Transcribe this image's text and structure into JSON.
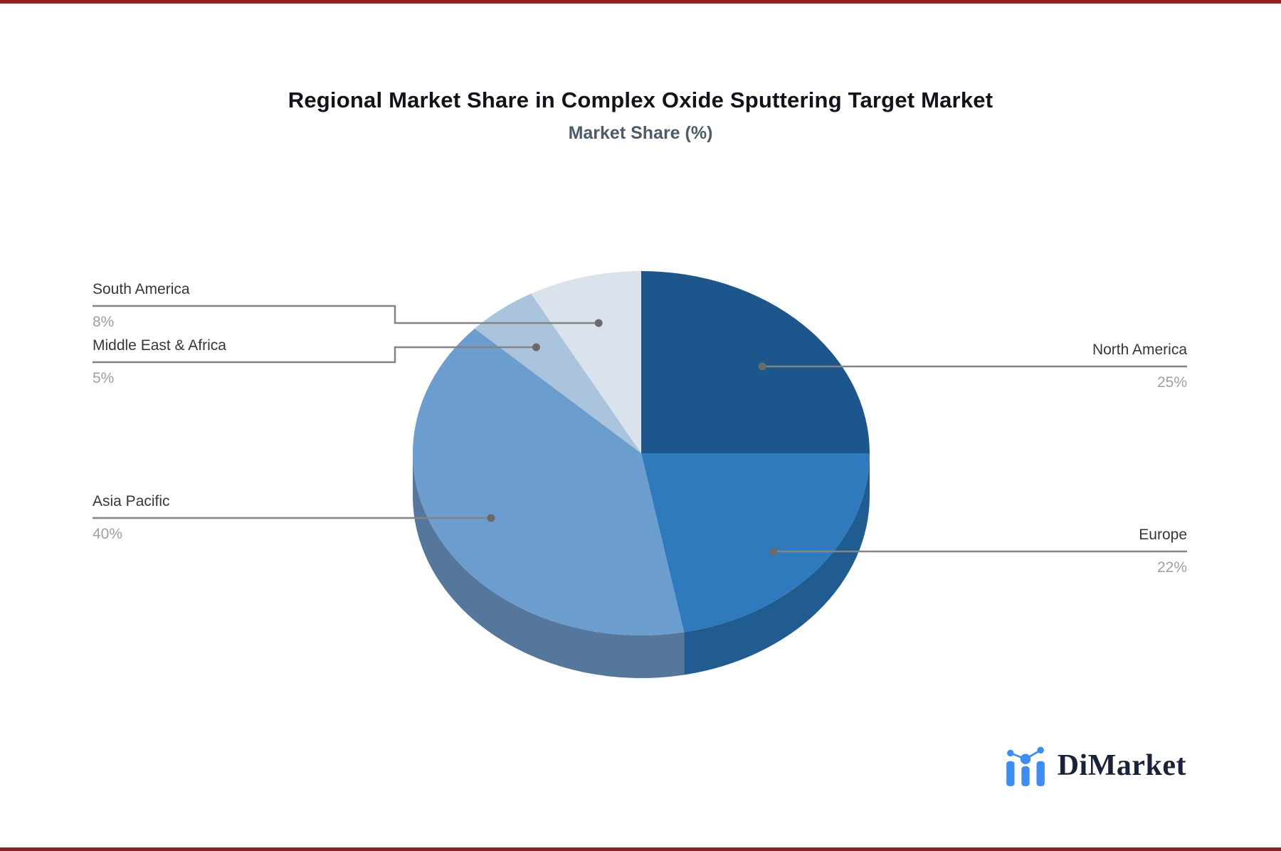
{
  "frame": {
    "border_color": "#8e2222",
    "background": "#ffffff"
  },
  "title": "Regional Market Share in Complex Oxide Sputtering Target Market",
  "subtitle": "Market Share (%)",
  "chart_data": {
    "type": "pie",
    "title": "Regional Market Share in Complex Oxide Sputtering Target Market",
    "subtitle": "Market Share (%)",
    "unit": "percent",
    "start_angle_deg": 0,
    "direction": "clockwise",
    "effect": "3d-depth",
    "legend_position": "callout-labels",
    "categories": [
      "North America",
      "Europe",
      "Asia Pacific",
      "Middle East & Africa",
      "South America"
    ],
    "values": [
      25,
      22,
      40,
      5,
      8
    ],
    "labels": [
      {
        "name": "North America",
        "value": "25%",
        "side": "right"
      },
      {
        "name": "Europe",
        "value": "22%",
        "side": "right"
      },
      {
        "name": "Asia Pacific",
        "value": "40%",
        "side": "left"
      },
      {
        "name": "Middle East & Africa",
        "value": "5%",
        "side": "left"
      },
      {
        "name": "South America",
        "value": "8%",
        "side": "left"
      }
    ],
    "colors": [
      "#1c568c",
      "#2e7abd",
      "#6b9dce",
      "#abc4de",
      "#dae2ec"
    ],
    "rim_colors": [
      "#154467",
      "#215c90",
      "#55779b",
      "#8fa8c2",
      "#b8c3d1"
    ],
    "leader_line_color": "#848484",
    "leader_dot_color": "#6a6a6a",
    "label_name_color": "#373737",
    "label_value_color": "#a0a0a0"
  },
  "logo": {
    "text": "DiMarket",
    "icon": "bar-line-chart-icon",
    "icon_color": "#3d8df2",
    "text_color": "#18223b"
  }
}
